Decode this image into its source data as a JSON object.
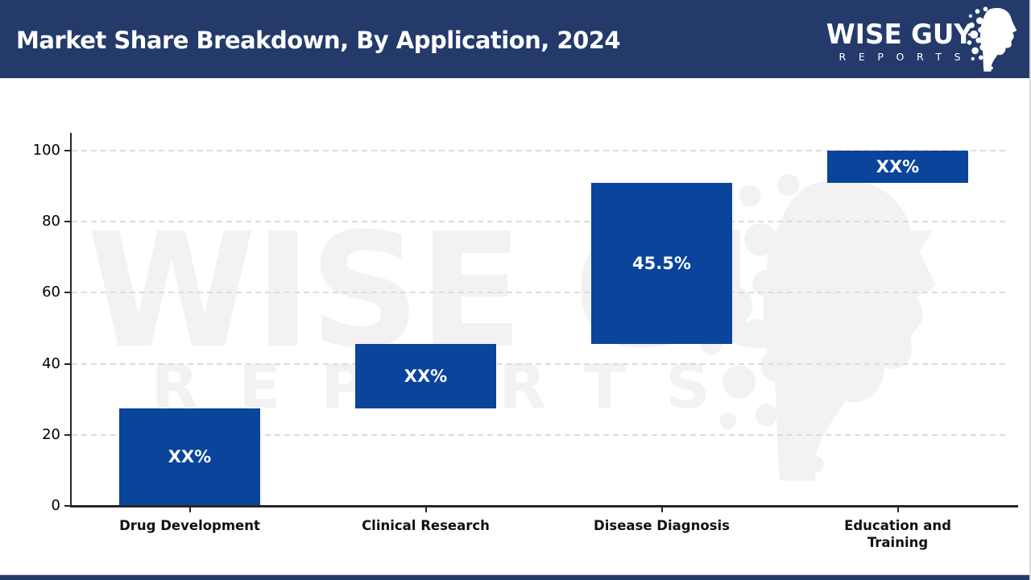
{
  "header": {
    "title": "Market Share Breakdown, By Application, 2024",
    "brand": {
      "name": "WISE GUY",
      "sub": "REPORTS"
    }
  },
  "watermark": {
    "name": "WISE GUY",
    "sub": "REPORTS"
  },
  "chart_data": {
    "type": "bar",
    "subtype": "floating-waterfall-bars",
    "title": "Market Share Breakdown, By Application, 2024",
    "categories": [
      "Drug Development",
      "Clinical Research",
      "Disease Diagnosis",
      "Education and Training"
    ],
    "segments": [
      {
        "category": "Drug Development",
        "start": 0,
        "end": 27.5,
        "label": "XX%"
      },
      {
        "category": "Clinical Research",
        "start": 27.5,
        "end": 45.5,
        "label": "XX%"
      },
      {
        "category": "Disease Diagnosis",
        "start": 45.5,
        "end": 91,
        "label": "45.5%"
      },
      {
        "category": "Education and Training",
        "start": 91,
        "end": 100,
        "label": "XX%"
      }
    ],
    "xlabel": "",
    "ylabel": "",
    "ylim": [
      0,
      105
    ],
    "yticks": [
      0,
      20,
      40,
      60,
      80,
      100
    ],
    "grid": "horizontal-dashed",
    "legend": "none"
  },
  "colors": {
    "header_bg": "#243a6b",
    "footer_bg": "#243a6b",
    "bar": "#0a449b",
    "bar_label": "#ffffff",
    "axis": "#262626",
    "gridline": "#dcdcdc",
    "watermark": "#f2f2f4",
    "page_bg": "#ffffff"
  }
}
